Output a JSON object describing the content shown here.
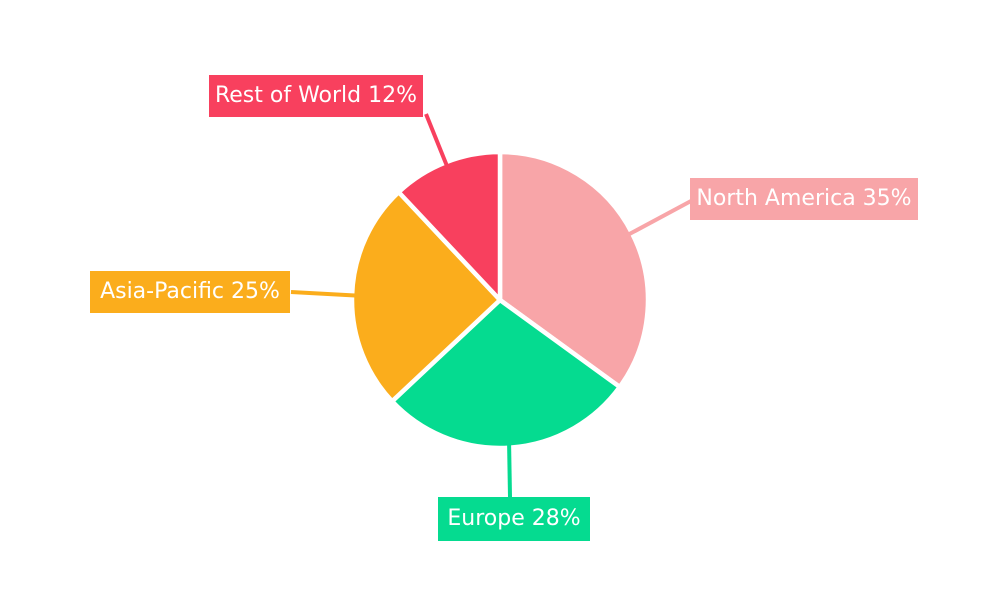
{
  "chart_data": {
    "type": "pie",
    "title": "",
    "categories": [
      "North America",
      "Europe",
      "Asia-Pacific",
      "Rest of World"
    ],
    "values": [
      35,
      28,
      25,
      12
    ],
    "unit": "%",
    "start_angle": "12 o'clock",
    "direction": "clockwise",
    "legend_position": "none",
    "background": "#FFFFFF",
    "label_text_color": "#FFFFFF",
    "slice_gap_color": "#FFFFFF",
    "slices": [
      {
        "label": "North America",
        "value": 35,
        "display": "North America 35%",
        "color": "#F8A5A8"
      },
      {
        "label": "Europe",
        "value": 28,
        "display": "Europe 28%",
        "color": "#05DB90"
      },
      {
        "label": "Asia-Pacific",
        "value": 25,
        "display": "Asia-Pacific 25%",
        "color": "#FBAD1C"
      },
      {
        "label": "Rest of World",
        "value": 12,
        "display": "Rest of World 12%",
        "color": "#F8405E"
      }
    ]
  }
}
